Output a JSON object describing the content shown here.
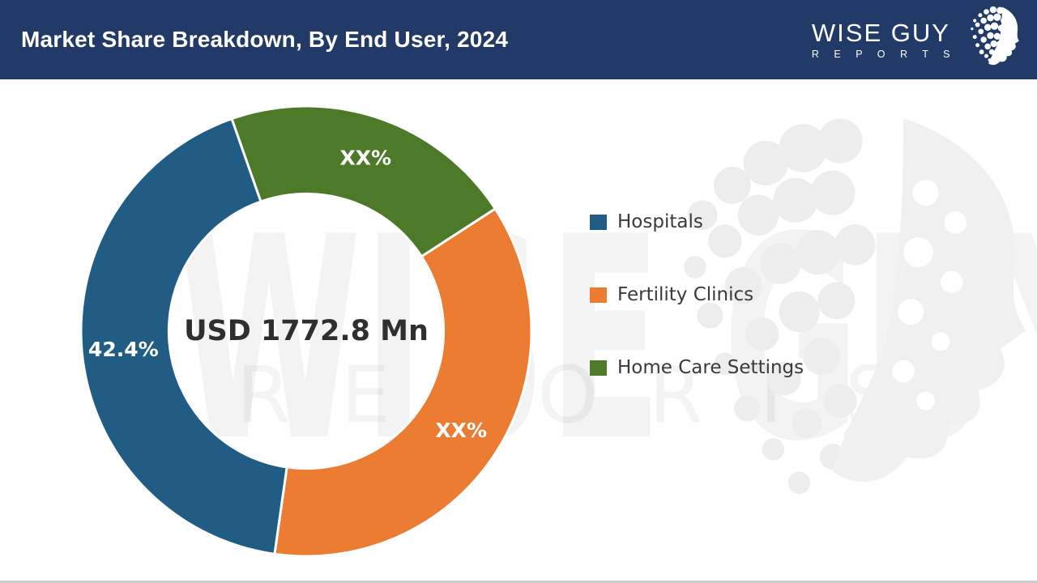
{
  "header": {
    "title": "Market Share Breakdown, By End User, 2024",
    "logo": {
      "line1": "WISE GUY",
      "line2": "R E P O R T S"
    }
  },
  "watermark": {
    "line1": "WISE GUY",
    "line2": "REPORTS"
  },
  "chart_data": {
    "type": "donut",
    "title": "Market Share Breakdown, By End User, 2024",
    "center_label": "USD 1772.8 Mn",
    "units": "percent share of market",
    "segments": [
      {
        "name": "Hospitals",
        "label": "42.4%",
        "value_pct": 42.4,
        "color": "#215c85"
      },
      {
        "name": "Fertility Clinics",
        "label": "XX%",
        "value_pct": 36.4,
        "color": "#ec7c32"
      },
      {
        "name": "Home Care Settings",
        "label": "XX%",
        "value_pct": 21.2,
        "color": "#4d7a28"
      }
    ],
    "layout": {
      "start_angle_deg": 109.3,
      "direction": "counterclockwise",
      "donut_hole_ratio": 0.61,
      "legend_position": "right",
      "slice_gap_color": "#ffffff",
      "background": "#ffffff",
      "header_color": "#223a68"
    }
  }
}
